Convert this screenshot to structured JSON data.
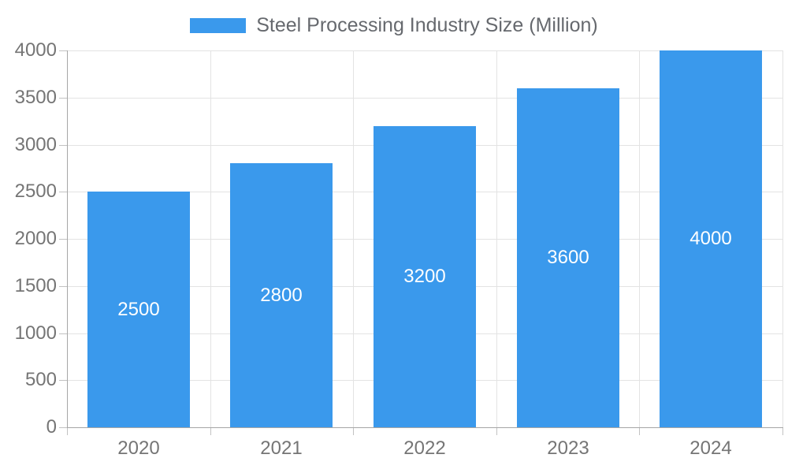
{
  "legend": {
    "label": "Steel Processing Industry Size (Million)"
  },
  "chart_data": {
    "type": "bar",
    "title": "Steel Processing Industry Size (Million)",
    "categories": [
      "2020",
      "2021",
      "2022",
      "2023",
      "2024"
    ],
    "series": [
      {
        "name": "Steel Processing Industry Size (Million)",
        "values": [
          2500,
          2800,
          3200,
          3600,
          4000
        ]
      }
    ],
    "bar_labels": [
      "2500",
      "2800",
      "3200",
      "3600",
      "4000"
    ],
    "xlabel": "",
    "ylabel": "",
    "ylim": [
      0,
      4000
    ],
    "y_tick_interval": 500,
    "y_tick_labels": [
      "0",
      "500",
      "1000",
      "1500",
      "2000",
      "2500",
      "3000",
      "3500",
      "4000"
    ],
    "grid": "horizontal-and-vertical",
    "legend_position": "top-center",
    "colors": {
      "bar": "#3A99EC",
      "bar_label": "#FFFFFF",
      "axis_line": "#A6A6A6",
      "tick_line": "#C2C2C2",
      "grid_line": "#E3E3E3",
      "axis_label": "#757575",
      "legend_text": "#66696E",
      "background": "#FFFFFF"
    }
  }
}
